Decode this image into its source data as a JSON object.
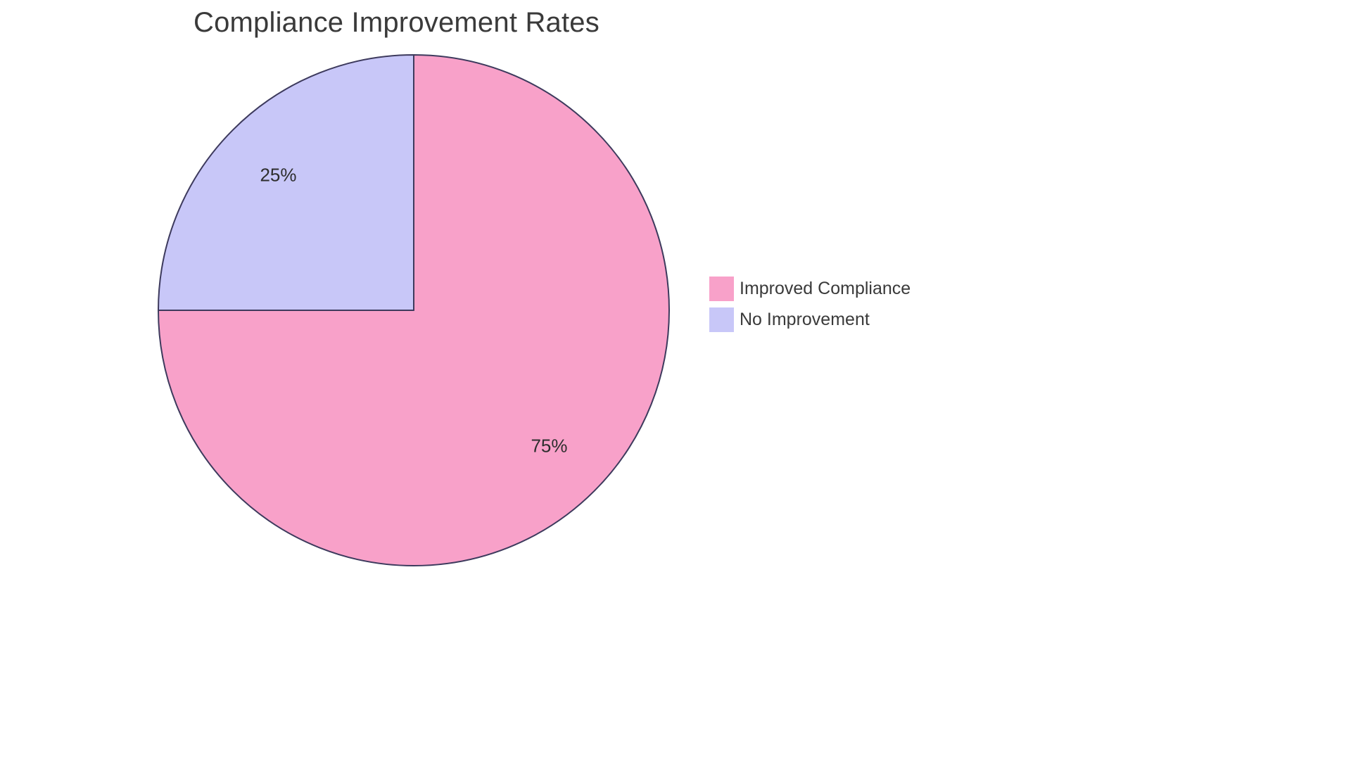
{
  "page": {
    "background": "#ffffff"
  },
  "chart_data": {
    "type": "pie",
    "title": "Compliance Improvement Rates",
    "slices": [
      {
        "name": "Improved Compliance",
        "value": 75,
        "pct_label": "75%",
        "color": "#F8A1C9"
      },
      {
        "name": "No Improvement",
        "value": 25,
        "pct_label": "25%",
        "color": "#C8C7F8"
      }
    ],
    "outline_color": "#3D3A5D",
    "legend_position": "right",
    "start_angle_deg": -90,
    "direction": "clockwise",
    "labels_position": "inside"
  }
}
